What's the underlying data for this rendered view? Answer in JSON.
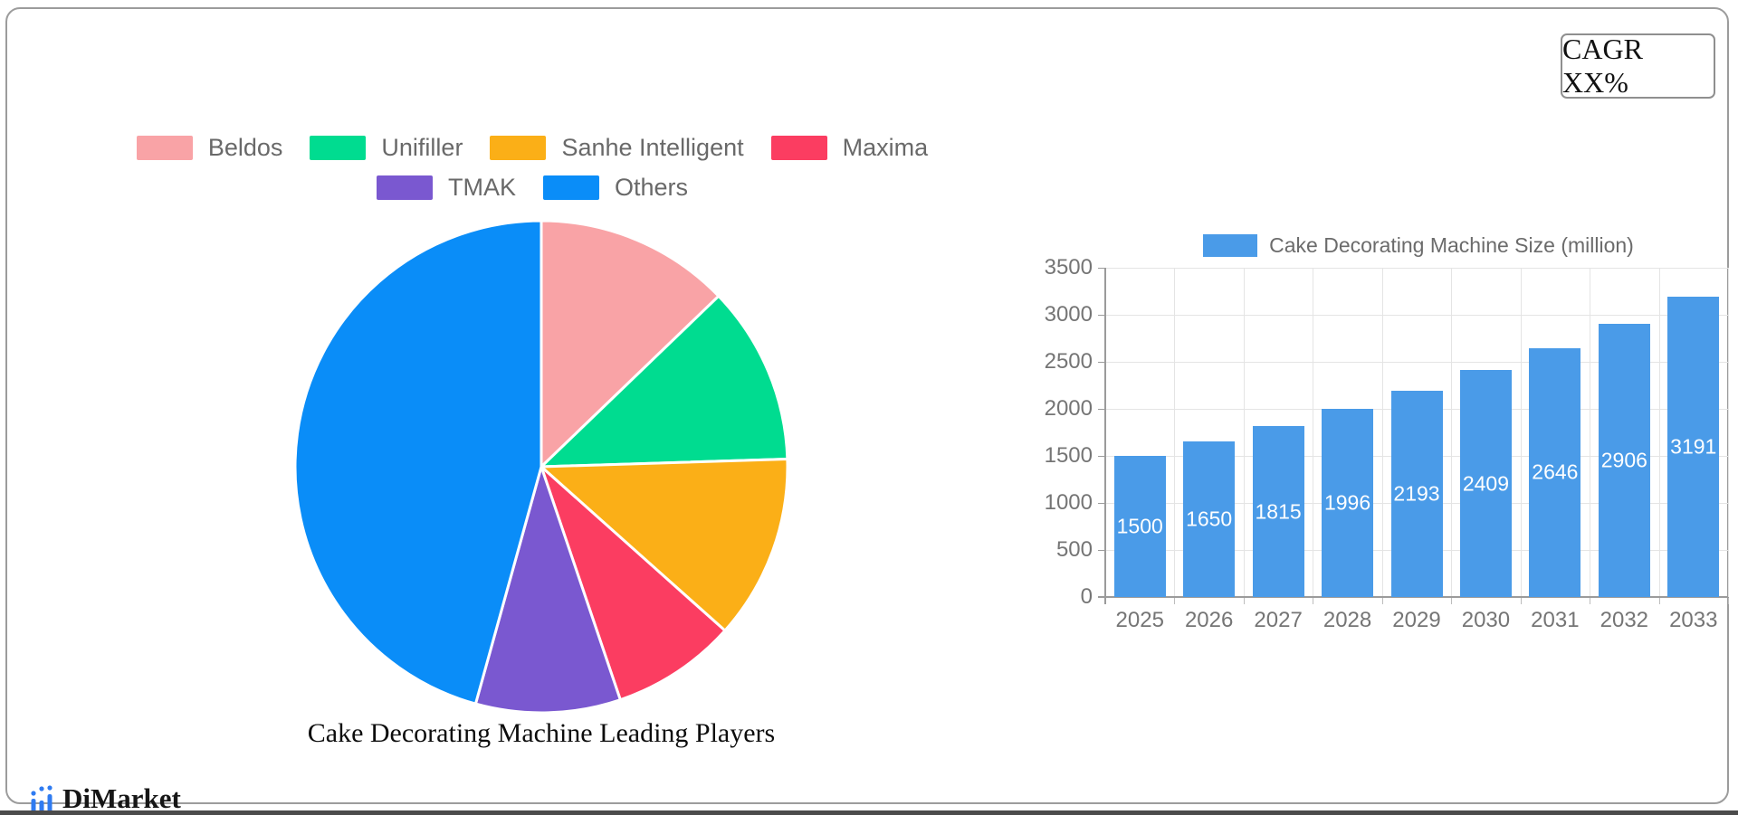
{
  "cagr": {
    "label": "CAGR XX%"
  },
  "footer": {
    "brand": "DiMarket",
    "brand_blue": "#2f7bf1"
  },
  "pie": {
    "title": "Cake Decorating Machine Leading Players",
    "legend_row_break": 4
  },
  "bar": {
    "legend_label": "Cake Decorating Machine Size (million)"
  },
  "chart_data": [
    {
      "type": "pie",
      "title": "Cake Decorating Machine Leading Players",
      "labels": [
        "Beldos",
        "Unifiller",
        "Sanhe Intelligent",
        "Maxima",
        "TMAK",
        "Others"
      ],
      "values": [
        12.8,
        11.7,
        12.1,
        8.2,
        9.5,
        45.7
      ],
      "values_note": "approximate share percent read from slice angles",
      "colors": [
        "#F9A3A6",
        "#00DC90",
        "#FBAF17",
        "#FB3D61",
        "#7A58D0",
        "#0A8DF8"
      ],
      "start_angle": "12 o'clock, clockwise",
      "legend_position": "top",
      "slice_border_color": "#ffffff"
    },
    {
      "type": "bar",
      "title": "Cake Decorating Machine Size (million)",
      "categories": [
        "2025",
        "2026",
        "2027",
        "2028",
        "2029",
        "2030",
        "2031",
        "2032",
        "2033"
      ],
      "values": [
        1500,
        1650,
        1815,
        1996,
        2193,
        2409,
        2646,
        2906,
        3191
      ],
      "bar_color": "#4A9BE8",
      "value_label_style": "white, inside bar, centered",
      "ylim": [
        0,
        3500
      ],
      "y_ticks": [
        0,
        500,
        1000,
        1500,
        2000,
        2500,
        3000,
        3500
      ],
      "grid": true,
      "legend_position": "top"
    }
  ]
}
